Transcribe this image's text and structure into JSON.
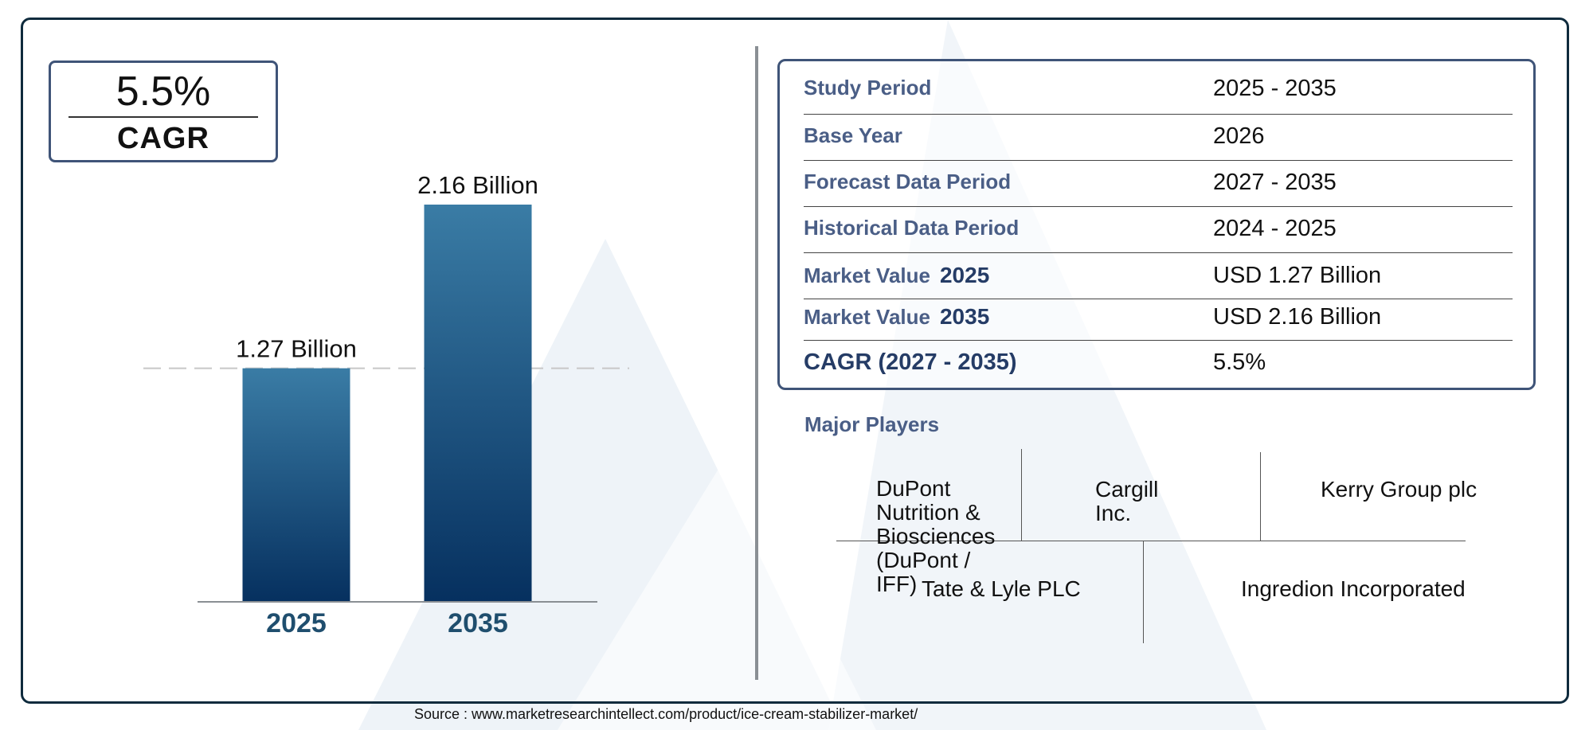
{
  "summary": {
    "cagr_value": "5.5%",
    "cagr_label": "CAGR"
  },
  "chart_data": {
    "type": "bar",
    "categories": [
      "2025",
      "2035"
    ],
    "values": [
      1.27,
      2.16
    ],
    "data_labels": [
      "1.27 Billion",
      "2.16 Billion"
    ],
    "ylim": [
      0,
      2.16
    ],
    "bar_gradient": [
      "#3a7ca5",
      "#06305f"
    ],
    "reference_line": {
      "value": 1.27,
      "style": "dashed"
    },
    "title": "",
    "xlabel": "",
    "ylabel": ""
  },
  "study_table": {
    "rows": [
      {
        "label": "Study Period",
        "year": "",
        "value": "2025 - 2035"
      },
      {
        "label": "Base Year",
        "year": "",
        "value": "2026"
      },
      {
        "label": "Forecast Data Period",
        "year": "",
        "value": "2027 - 2035"
      },
      {
        "label": "Historical Data Period",
        "year": "",
        "value": "2024 - 2025"
      },
      {
        "label": "Market Value",
        "year": "2025",
        "value": "USD 1.27 Billion"
      },
      {
        "label": "Market Value",
        "year": "2035",
        "value": "USD 2.16 Billion"
      },
      {
        "label": "CAGR (2027 - 2035)",
        "year": "",
        "value": "5.5%"
      }
    ]
  },
  "major_players": {
    "heading": "Major Players",
    "players": [
      "DuPont Nutrition & Biosciences (DuPont / IFF)",
      "Cargill Inc.",
      "Kerry Group plc",
      "Tate & Lyle PLC",
      "Ingredion Incorporated"
    ]
  },
  "source": "Source : www.marketresearchintellect.com/product/ice-cream-stabilizer-market/",
  "colors": {
    "frame": "#0f2b3d",
    "box_border": "#3f5478",
    "label_text": "#4a5e86",
    "axis_tick": "#1f4e6e"
  }
}
